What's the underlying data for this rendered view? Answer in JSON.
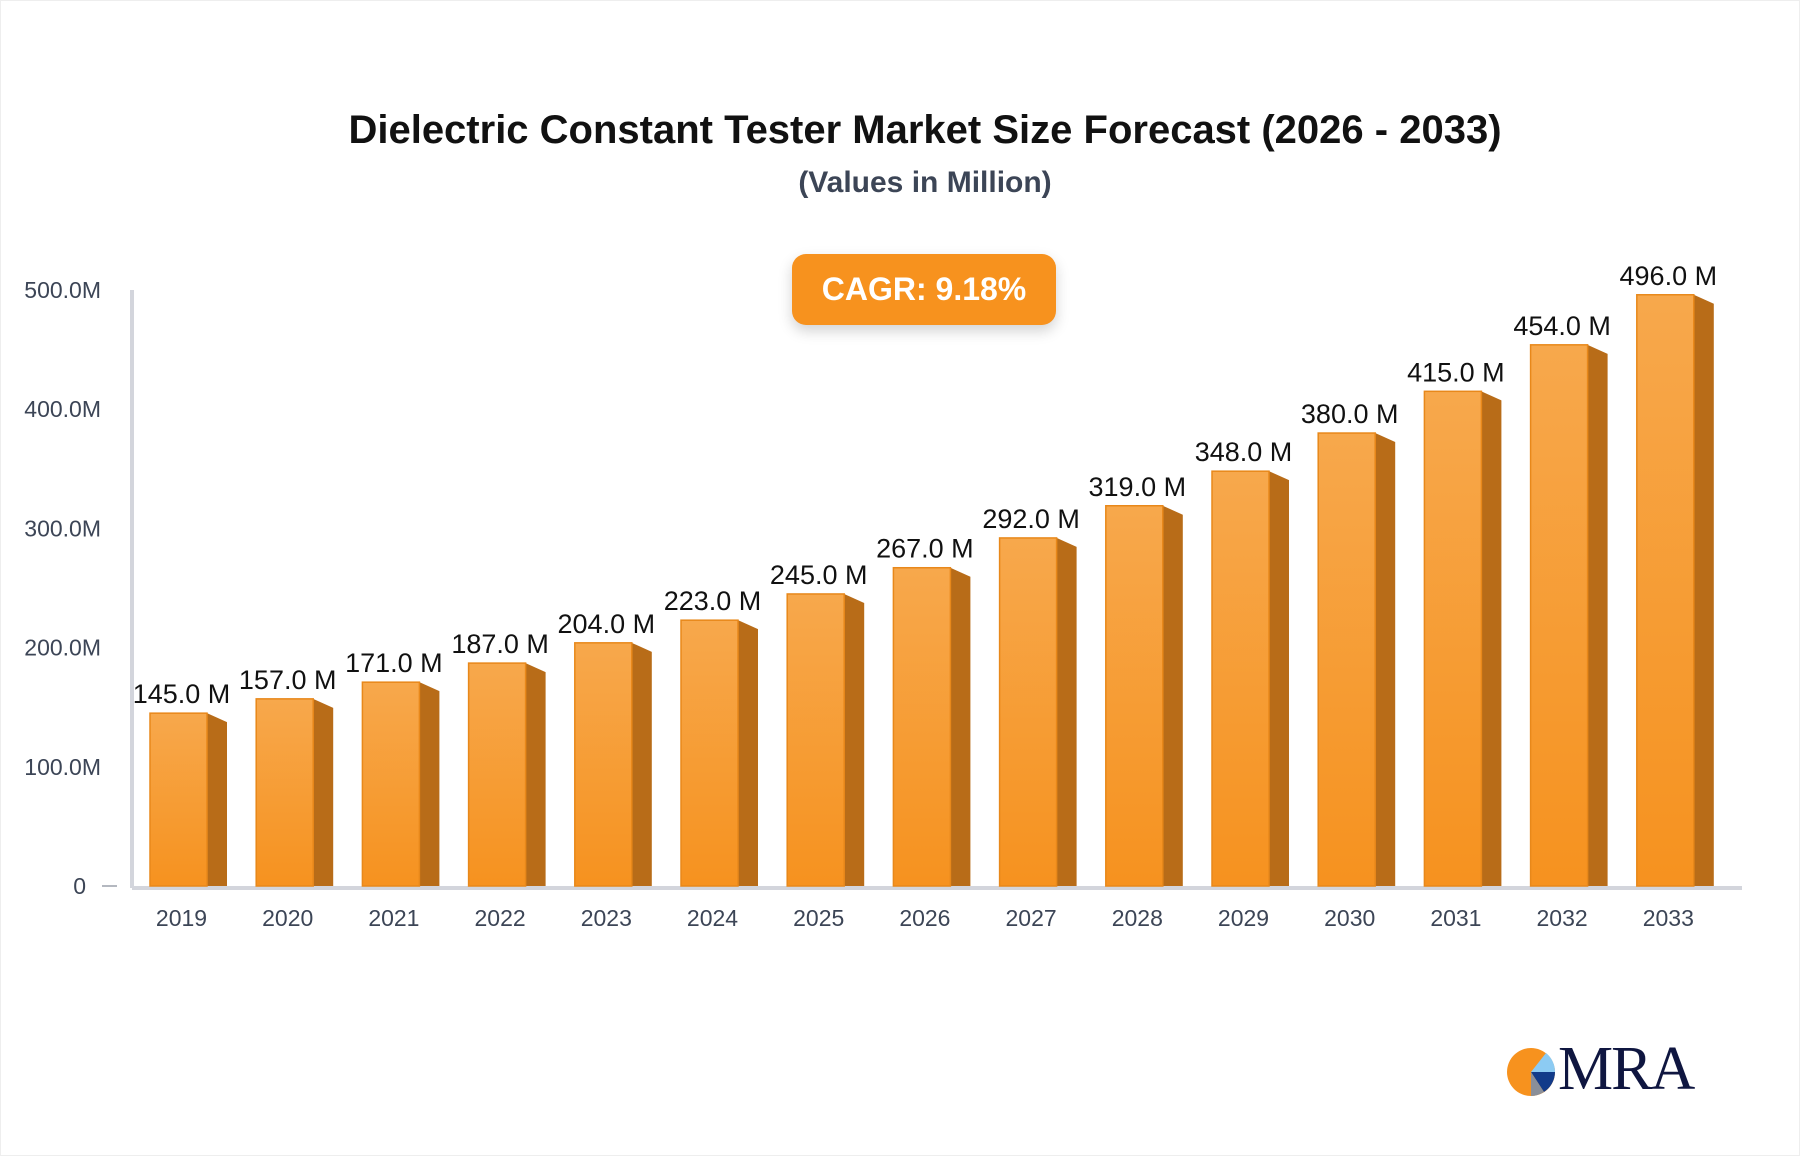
{
  "chart_data": {
    "type": "bar",
    "title": "Dielectric Constant Tester Market Size Forecast (2026 - 2033)",
    "subtitle": "(Values in Million)",
    "annotation": "CAGR: 9.18%",
    "categories": [
      "2019",
      "2020",
      "2021",
      "2022",
      "2023",
      "2024",
      "2025",
      "2026",
      "2027",
      "2028",
      "2029",
      "2030",
      "2031",
      "2032",
      "2033"
    ],
    "values": [
      145.0,
      157.0,
      171.0,
      187.0,
      204.0,
      223.0,
      245.0,
      267.0,
      292.0,
      319.0,
      348.0,
      380.0,
      415.0,
      454.0,
      496.0
    ],
    "data_labels": [
      "145.0 M",
      "157.0 M",
      "171.0 M",
      "187.0 M",
      "204.0 M",
      "223.0 M",
      "245.0 M",
      "267.0 M",
      "292.0 M",
      "319.0 M",
      "348.0 M",
      "380.0 M",
      "415.0 M",
      "454.0 M",
      "496.0 M"
    ],
    "y_ticks": [
      0,
      100,
      200,
      300,
      400,
      500
    ],
    "y_tick_labels": [
      "0",
      "100.0M",
      "200.0M",
      "300.0M",
      "400.0M",
      "500.0M"
    ],
    "ylim": [
      0,
      500
    ],
    "xlabel": "",
    "ylabel": "",
    "grid": false,
    "colors": {
      "bar_front": "#f7a445",
      "bar_side": "#b86c18",
      "cagr_badge": "#f7921e"
    }
  },
  "logo": {
    "text": "MRA"
  }
}
